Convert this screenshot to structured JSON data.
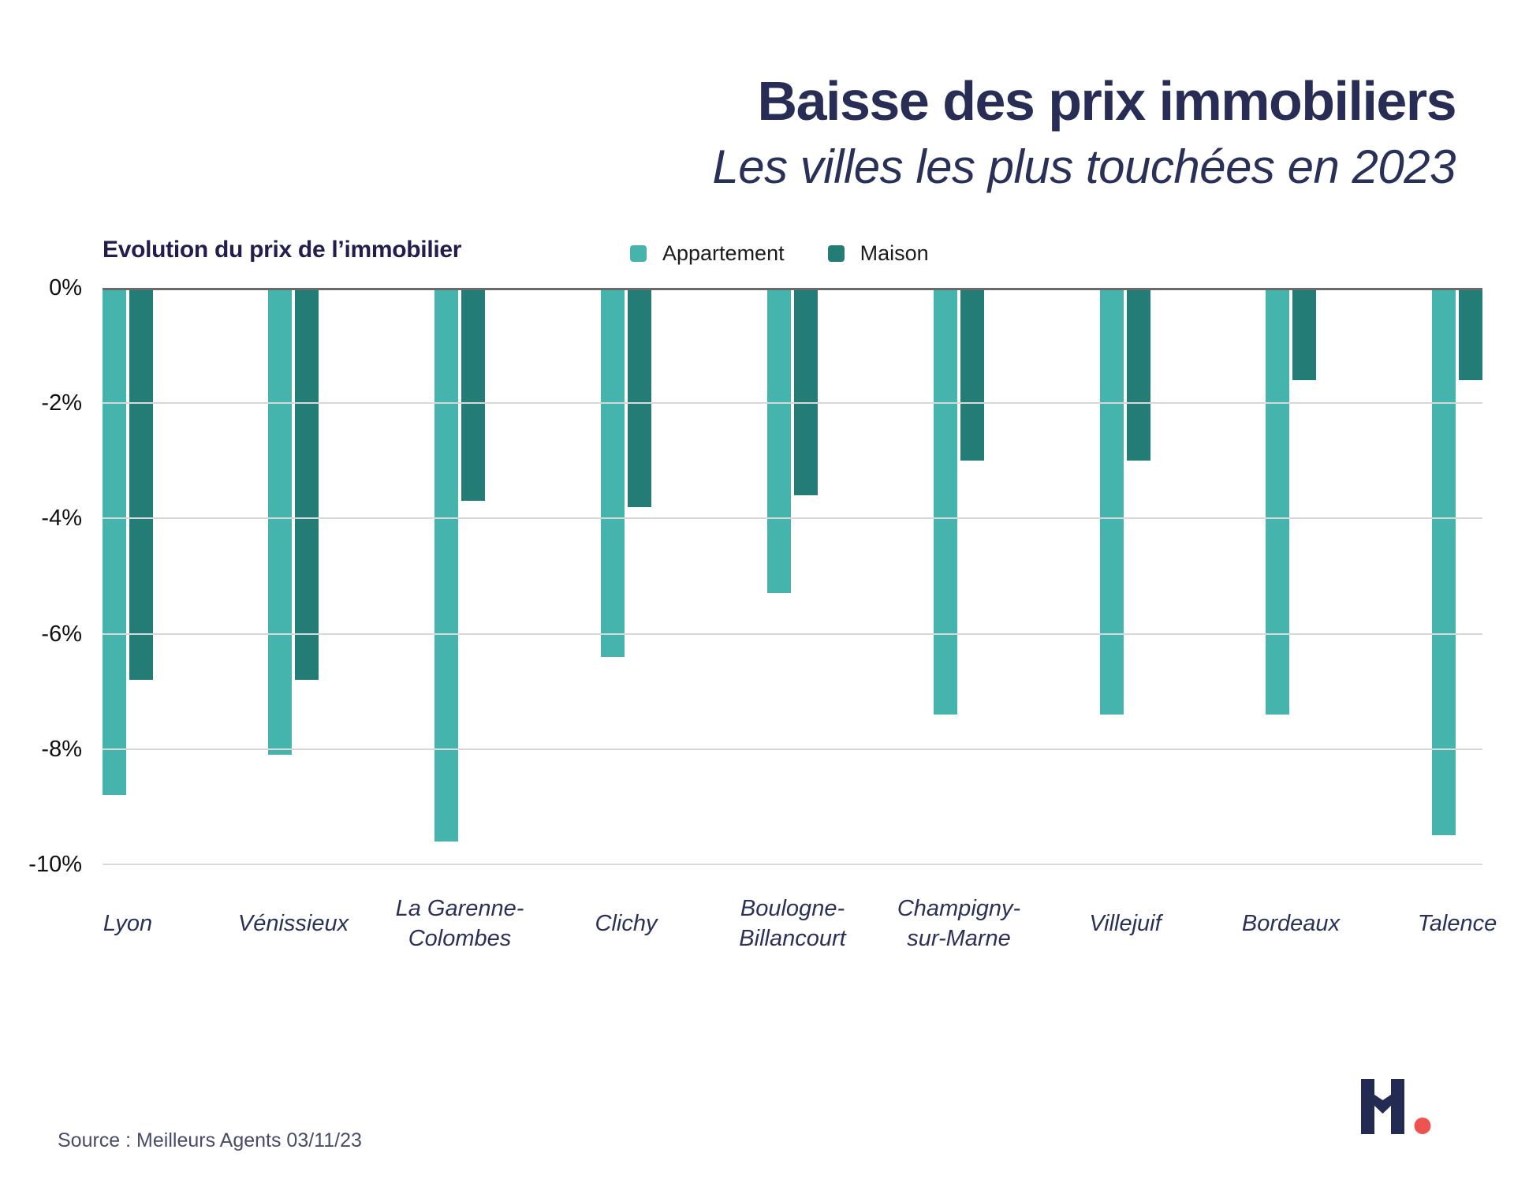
{
  "header": {
    "title": "Baisse des prix immobiliers",
    "subtitle": "Les villes les plus touchées en 2023"
  },
  "chart_data": {
    "type": "bar",
    "title": "Evolution du prix de l’immobilier",
    "categories": [
      "Lyon",
      "Vénissieux",
      "La Garenne-Colombes",
      "Clichy",
      "Boulogne-Billancourt",
      "Champigny-sur-Marne",
      "Villejuif",
      "Bordeaux",
      "Talence"
    ],
    "category_lines": [
      [
        "Lyon"
      ],
      [
        "Vénissieux"
      ],
      [
        "La Garenne-",
        "Colombes"
      ],
      [
        "Clichy"
      ],
      [
        "Boulogne-",
        "Billancourt"
      ],
      [
        "Champigny-",
        "sur-Marne"
      ],
      [
        "Villejuif"
      ],
      [
        "Bordeaux"
      ],
      [
        "Talence"
      ]
    ],
    "series": [
      {
        "name": "Appartement",
        "color": "#45B4AC",
        "values": [
          -8.8,
          -8.1,
          -9.6,
          -6.4,
          -5.3,
          -7.4,
          -7.4,
          -7.4,
          -9.5
        ]
      },
      {
        "name": "Maison",
        "color": "#237D76",
        "values": [
          -6.8,
          -6.8,
          -3.7,
          -3.8,
          -3.6,
          -3.0,
          -3.0,
          -1.6,
          -1.6
        ]
      }
    ],
    "y_ticks": [
      "0%",
      "-2%",
      "-4%",
      "-6%",
      "-8%",
      "-10%"
    ],
    "ylim": [
      -10,
      0
    ],
    "ylabel": "",
    "xlabel": "",
    "grid": true,
    "legend_position": "top"
  },
  "footer": {
    "source": "Source : Meilleurs Agents 03/11/23"
  },
  "logo": {
    "brand_letter": "H"
  },
  "colors": {
    "appartement": "#45B4AC",
    "maison": "#237D76",
    "navy": "#282D55",
    "gridline": "#D8D8D8",
    "zero_line": "#6A6A6A",
    "logo_navy": "#232B52",
    "logo_red": "#ED5350"
  }
}
